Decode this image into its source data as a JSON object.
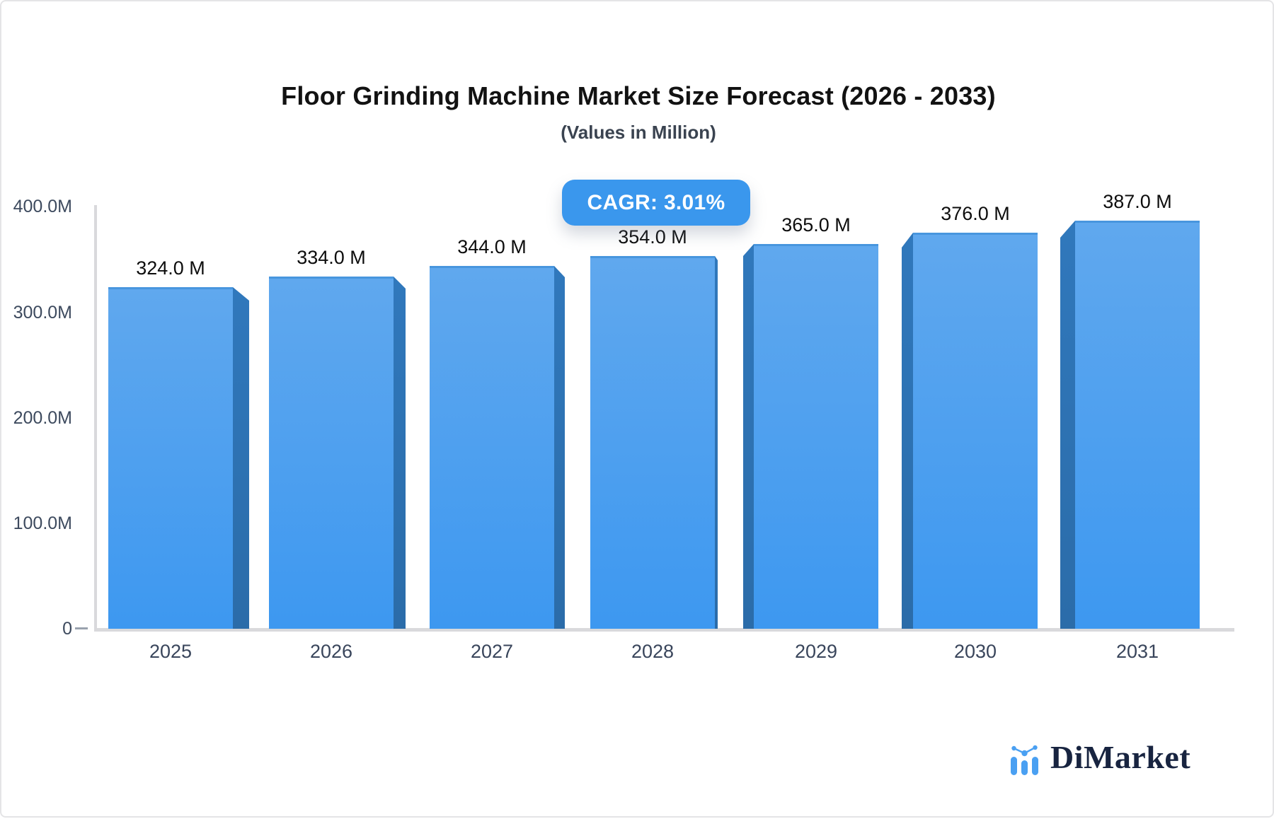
{
  "title": "Floor Grinding Machine Market Size Forecast (2026 - 2033)",
  "subtitle": "(Values in Million)",
  "cagr_badge": "CAGR: 3.01%",
  "chart_data": {
    "type": "bar",
    "categories": [
      "2025",
      "2026",
      "2027",
      "2028",
      "2029",
      "2030",
      "2031"
    ],
    "values": [
      324.0,
      334.0,
      344.0,
      354.0,
      365.0,
      376.0,
      387.0
    ],
    "value_labels": [
      "324.0 M",
      "334.0 M",
      "344.0 M",
      "354.0 M",
      "365.0 M",
      "376.0 M",
      "387.0 M"
    ],
    "yticks": [
      "400.0M",
      "300.0M",
      "200.0M",
      "100.0M",
      "0"
    ],
    "ylim": [
      0,
      400
    ],
    "grid": false,
    "legend": "none",
    "title": "Floor Grinding Machine Market Size Forecast (2026 - 2033)",
    "xlabel": "",
    "ylabel": "",
    "colors": {
      "bar_face_top": "#60a8ee",
      "bar_face_bottom": "#3d98f0",
      "bar_top_edge": "#4896de",
      "bar_side_top": "#3078bc",
      "bar_side_bottom": "#2b6ca9",
      "badge_background": "#3a97ed",
      "axis_line": "#d9d9dc",
      "tick_text": "#3d4a5e"
    }
  },
  "logo": {
    "text": "DiMarket",
    "icon": "bar-chart-logo-icon",
    "text_color": "#182440",
    "accent_color": "#4aa0f2"
  }
}
